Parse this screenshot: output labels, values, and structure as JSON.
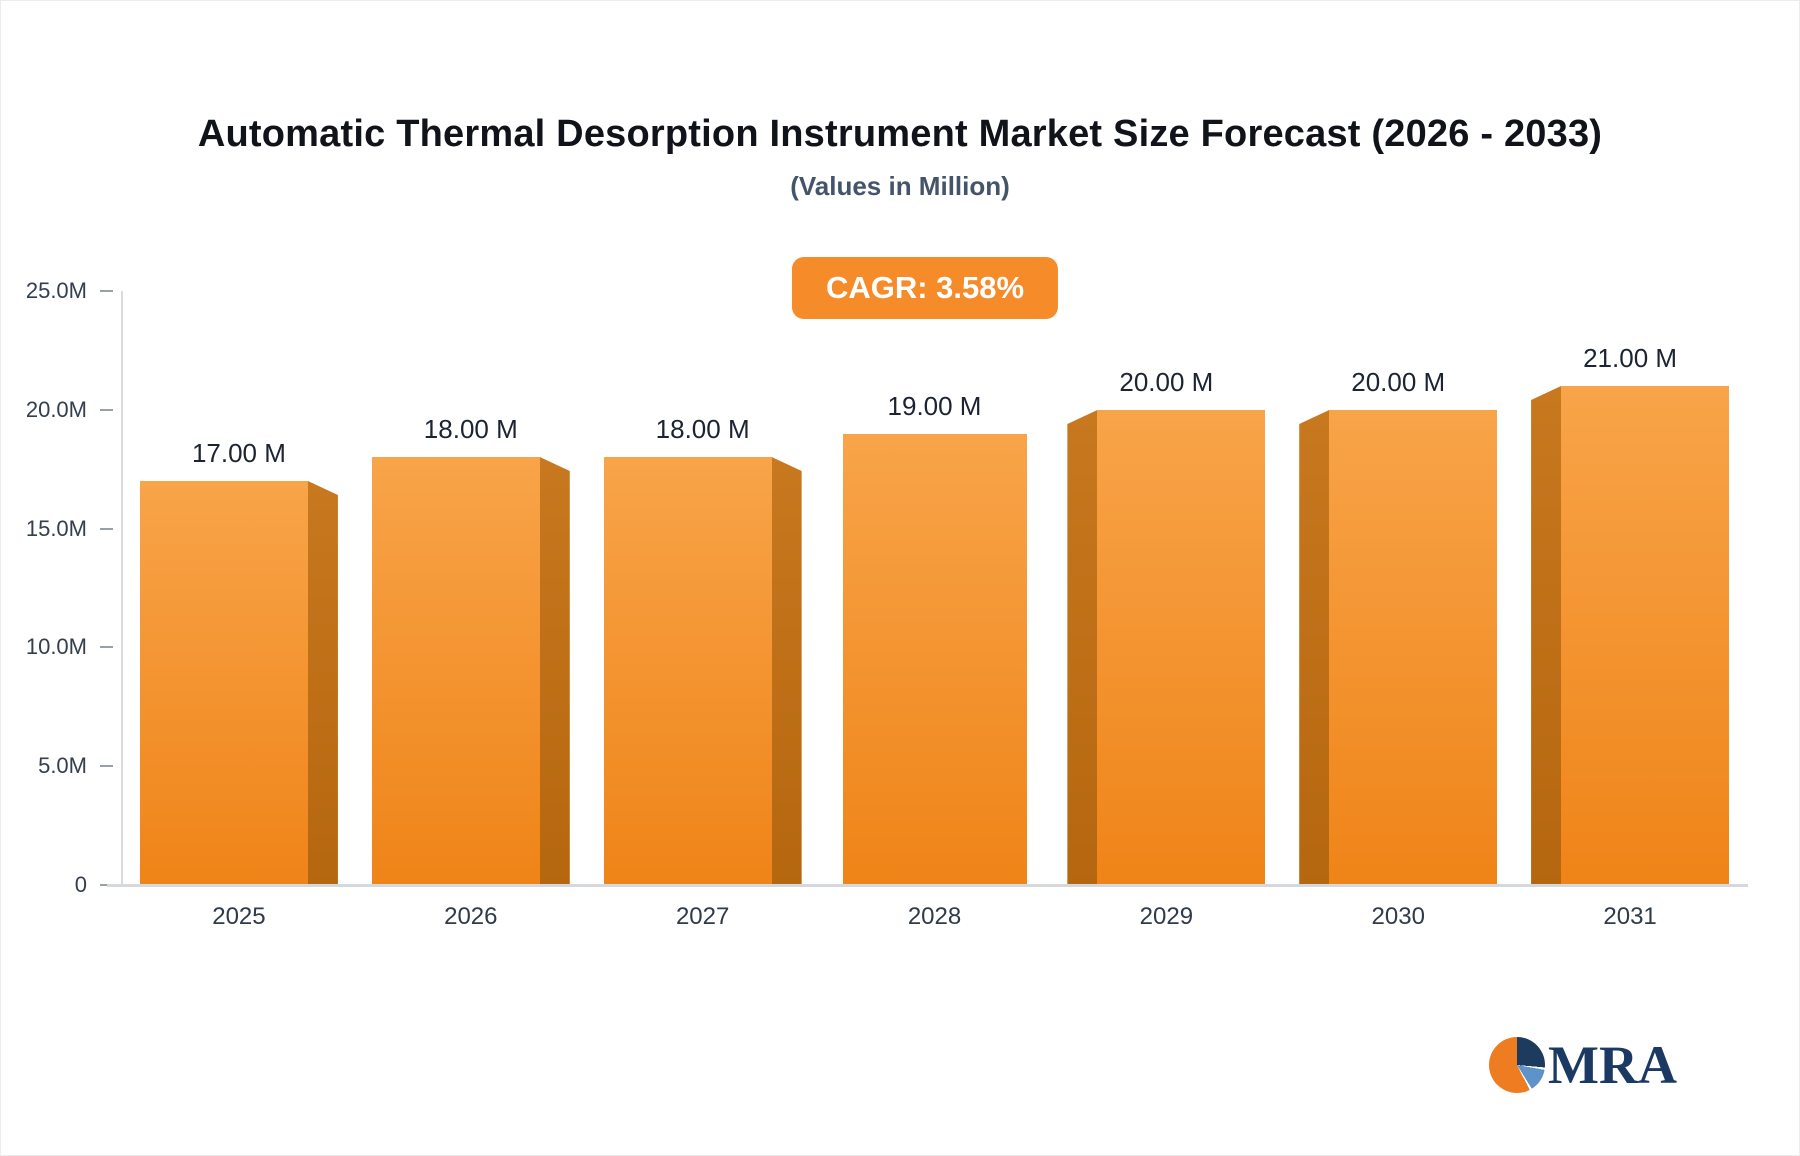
{
  "chart_data": {
    "type": "bar",
    "title": "Automatic Thermal Desorption Instrument Market Size Forecast (2026 - 2033)",
    "subtitle": "(Values in Million)",
    "cagr_label": "CAGR: 3.58%",
    "categories": [
      "2025",
      "2026",
      "2027",
      "2028",
      "2029",
      "2030",
      "2031"
    ],
    "values": [
      17,
      18,
      18,
      19,
      20,
      20,
      21
    ],
    "value_labels": [
      "17.00 M",
      "18.00 M",
      "18.00 M",
      "19.00 M",
      "20.00 M",
      "20.00 M",
      "21.00 M"
    ],
    "xlabel": "",
    "ylabel": "",
    "ylim": [
      0,
      25
    ],
    "yticks": [
      0,
      5,
      10,
      15,
      20,
      25
    ],
    "ytick_labels": [
      "0",
      "5.0M",
      "10.0M",
      "15.0M",
      "20.0M",
      "25.0M"
    ],
    "grid": false,
    "legend": false,
    "colors": {
      "bar_top": "#f8a449",
      "bar_bottom": "#ef8418",
      "bar_side": "#b5670f",
      "badge_bg": "#f68b29",
      "title_text": "#101319",
      "subtitle_text": "#44546a",
      "axis_text": "#333e4e",
      "axis_line": "#d5d8dc"
    }
  },
  "logo": {
    "text": "MRA"
  }
}
